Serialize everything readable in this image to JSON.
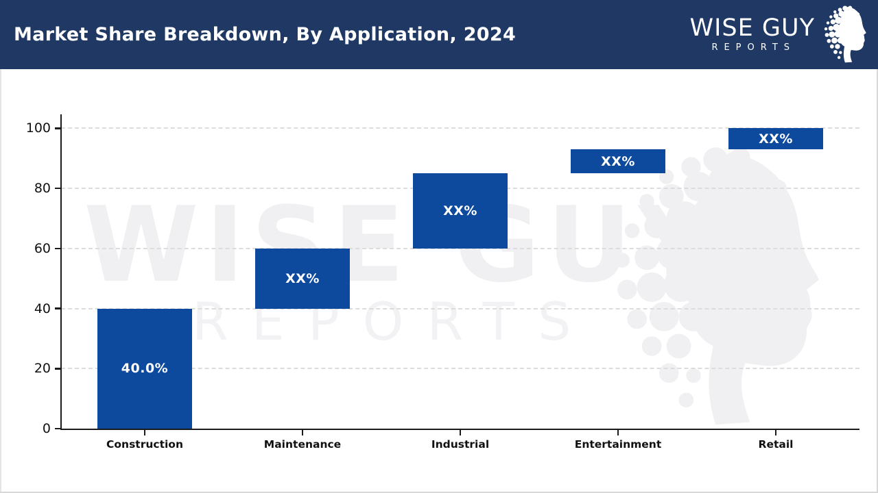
{
  "header": {
    "title": "Market Share Breakdown, By Application, 2024",
    "logo": {
      "line1": "WISE GUY",
      "line2": "REPORTS"
    }
  },
  "watermark": {
    "line1": "WISE GUY",
    "line2": "REPORTS"
  },
  "chart_data": {
    "type": "bar",
    "subtype": "waterfall",
    "title": "Market Share Breakdown, By Application, 2024",
    "categories": [
      "Construction",
      "Maintenance",
      "Industrial",
      "Entertainment",
      "Retail"
    ],
    "bars": [
      {
        "category": "Construction",
        "start": 0,
        "end": 40,
        "label": "40.0%"
      },
      {
        "category": "Maintenance",
        "start": 40,
        "end": 60,
        "label": "XX%"
      },
      {
        "category": "Industrial",
        "start": 60,
        "end": 85,
        "label": "XX%"
      },
      {
        "category": "Entertainment",
        "start": 85,
        "end": 93,
        "label": "XX%"
      },
      {
        "category": "Retail",
        "start": 93,
        "end": 100,
        "label": "XX%"
      }
    ],
    "yticks": [
      0,
      20,
      40,
      60,
      80,
      100
    ],
    "ylim": [
      0,
      105
    ],
    "xlabel": "",
    "ylabel": "",
    "grid": "horizontal-dashed",
    "legend": "none",
    "bar_color": "#0d4a9e",
    "bar_label_color": "#ffffff"
  },
  "colors": {
    "header_bg": "#1f3864",
    "bar_blue": "#0d4a9e",
    "grid": "#dcdcdc",
    "axis": "#1a1a1a",
    "watermark": "#f0f0f3"
  }
}
